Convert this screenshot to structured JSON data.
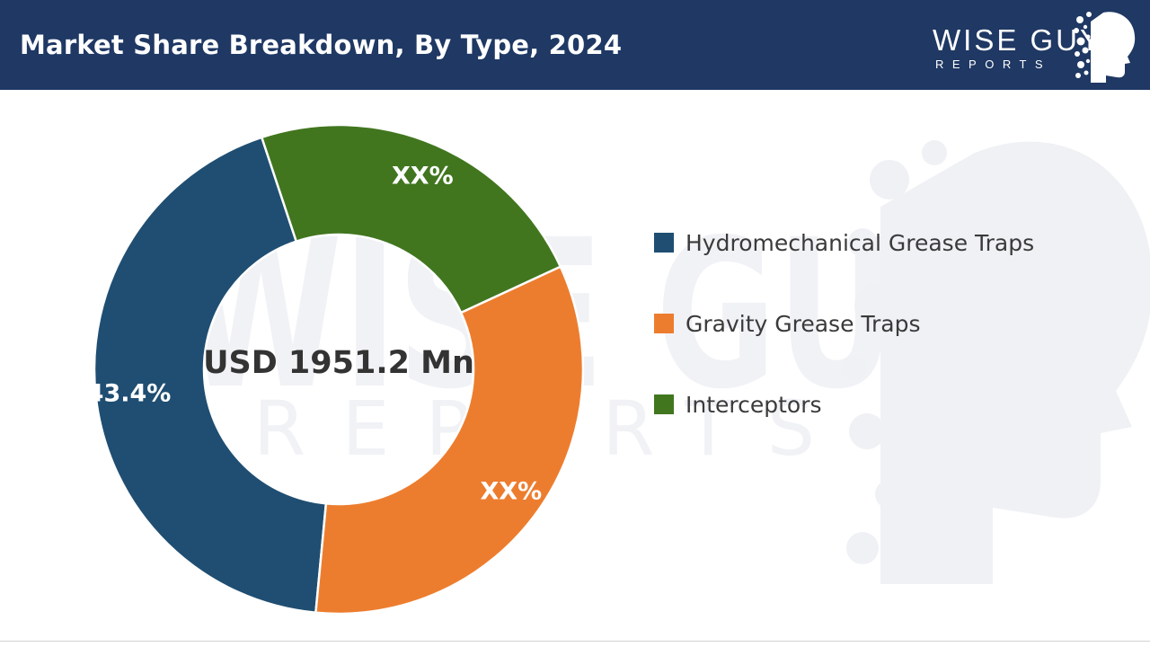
{
  "header": {
    "title": "Market Share Breakdown, By Type, 2024",
    "logo": {
      "line1": "WISE GUY",
      "line2": "REPORTS"
    }
  },
  "watermark": {
    "line1": "WISE GUY",
    "line2": "REPORTS"
  },
  "chart_data": {
    "type": "pie",
    "subtype": "donut",
    "title": "Market Share Breakdown, By Type, 2024",
    "center_text": "USD 1951.2 Mn",
    "start_angle_deg": 185.4,
    "clockwise": true,
    "inner_radius_ratio": 0.55,
    "segments": [
      {
        "name": "Hydromechanical Grease Traps",
        "value_percent": 43.4,
        "display_label": "43.4%",
        "color": "#1F4E72"
      },
      {
        "name": "Interceptors",
        "value_percent": 23.2,
        "display_label": "XX%",
        "color": "#41761F"
      },
      {
        "name": "Gravity Grease Traps",
        "value_percent": 33.4,
        "display_label": "XX%",
        "color": "#ED7D2E"
      }
    ],
    "legend_order": [
      0,
      2,
      1
    ],
    "legend_position": "right"
  }
}
